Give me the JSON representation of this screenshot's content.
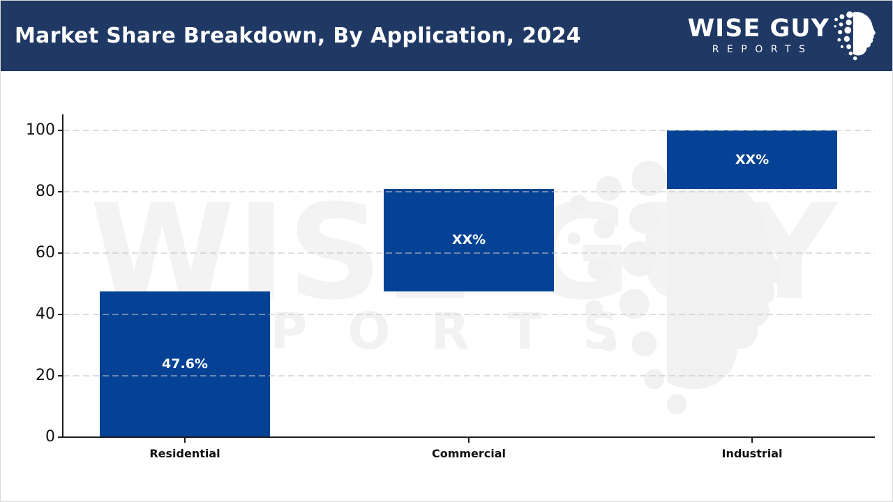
{
  "header": {
    "title": "Market Share Breakdown, By Application, 2024",
    "bg_color": "#1f3864",
    "logo": {
      "line1": "WISE GUY",
      "line2": "REPORTS"
    }
  },
  "watermark": {
    "line1": "WISE GUY",
    "line2": "REPORTS"
  },
  "chart_data": {
    "type": "bar",
    "subtype": "floating-waterfall",
    "title": "Market Share Breakdown, By Application, 2024",
    "categories": [
      "Residential",
      "Commercial",
      "Industrial"
    ],
    "segments": [
      {
        "category": "Residential",
        "start": 0,
        "end": 47.6,
        "label": "47.6%"
      },
      {
        "category": "Commercial",
        "start": 47.6,
        "end": 81,
        "label": "XX%"
      },
      {
        "category": "Industrial",
        "start": 81,
        "end": 100,
        "label": "XX%"
      }
    ],
    "ylim": [
      0,
      100
    ],
    "yticks": [
      0,
      20,
      40,
      60,
      80,
      100
    ],
    "xlabel": "",
    "ylabel": "",
    "grid": "horizontal-dashed",
    "legend": "none",
    "bar_color": "#054296",
    "bar_label_color": "#ffffff",
    "axis_color": "#1c1c1c"
  }
}
